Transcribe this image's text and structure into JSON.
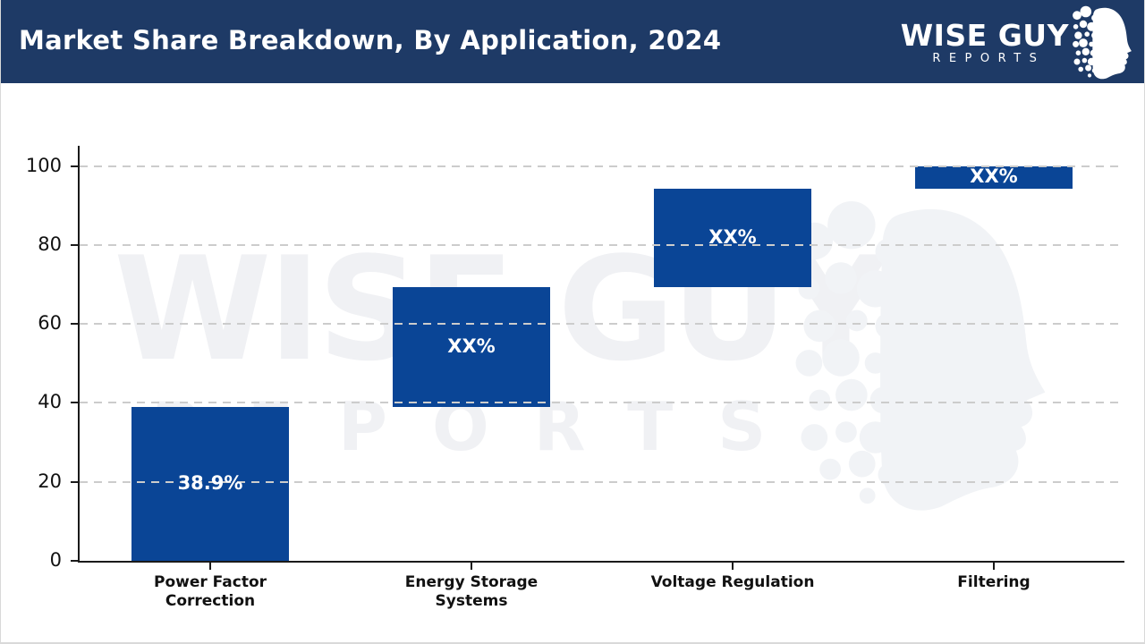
{
  "header": {
    "title": "Market Share Breakdown, By Application, 2024",
    "bg_color": "#1e3a66",
    "logo": {
      "line1": "WISE GUY",
      "line2": "REPORTS"
    }
  },
  "watermark": {
    "line1": "WISE GUY",
    "line2": "REPORTS"
  },
  "chart_data": {
    "type": "bar",
    "subtype": "waterfall",
    "title": "Market Share Breakdown, By Application, 2024",
    "categories": [
      "Power Factor\nCorrection",
      "Energy Storage\nSystems",
      "Voltage Regulation",
      "Filtering"
    ],
    "segments": [
      {
        "category": "Power Factor Correction",
        "start": 0,
        "end": 38.9,
        "label": "38.9%"
      },
      {
        "category": "Energy Storage Systems",
        "start": 38.9,
        "end": 69.4,
        "label": "XX%"
      },
      {
        "category": "Voltage Regulation",
        "start": 69.4,
        "end": 94.2,
        "label": "XX%"
      },
      {
        "category": "Filtering",
        "start": 94.2,
        "end": 100,
        "label": "XX%"
      }
    ],
    "yticks": [
      0,
      20,
      40,
      60,
      80,
      100
    ],
    "ylim": [
      0,
      105
    ],
    "xlabel": "",
    "ylabel": "",
    "grid": "horizontal-dashed-over-bars",
    "legend": null,
    "bar_color": "#0a4596",
    "bar_label_color": "#ffffff",
    "axis_color": "#1a1a1a",
    "gridline_color": "#cccccc"
  }
}
